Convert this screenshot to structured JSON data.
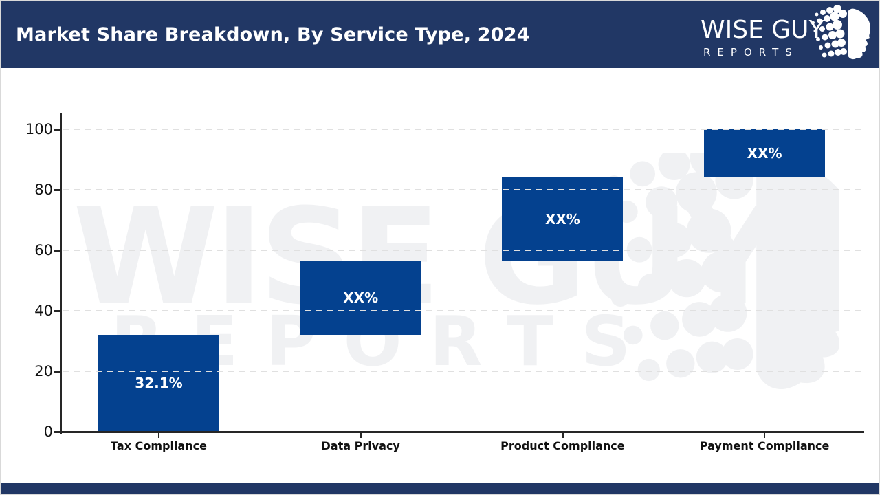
{
  "header": {
    "title": "Market Share Breakdown, By Service Type, 2024",
    "logo": {
      "line1": "WISE GUY",
      "line2": "REPORTS"
    }
  },
  "watermark": {
    "line1": "WISE GUY",
    "line2": "REPORTS"
  },
  "colors": {
    "header_bg": "#213765",
    "bar": "#04418f",
    "grid": "#e0e0e0",
    "axis": "#262626",
    "watermark": "#f0f1f3"
  },
  "chart_data": {
    "type": "bar",
    "subtype": "waterfall",
    "title": "Market Share Breakdown, By Service Type, 2024",
    "categories": [
      "Tax Compliance",
      "Data Privacy",
      "Product Compliance",
      "Payment Compliance"
    ],
    "segments": [
      {
        "category": "Tax Compliance",
        "start": 0,
        "end": 32.1,
        "label": "32.1%"
      },
      {
        "category": "Data Privacy",
        "start": 32.1,
        "end": 56.4,
        "label": "XX%"
      },
      {
        "category": "Product Compliance",
        "start": 56.4,
        "end": 84.1,
        "label": "XX%"
      },
      {
        "category": "Payment Compliance",
        "start": 84.1,
        "end": 100,
        "label": "XX%"
      }
    ],
    "values": [
      32.1,
      24.3,
      27.7,
      15.9
    ],
    "yticks": [
      0,
      20,
      40,
      60,
      80,
      100
    ],
    "ylim": [
      0,
      105
    ],
    "xlabel": "",
    "ylabel": "",
    "grid": "horizontal-dashed",
    "legend": "none",
    "bar_color": "#04418f"
  }
}
